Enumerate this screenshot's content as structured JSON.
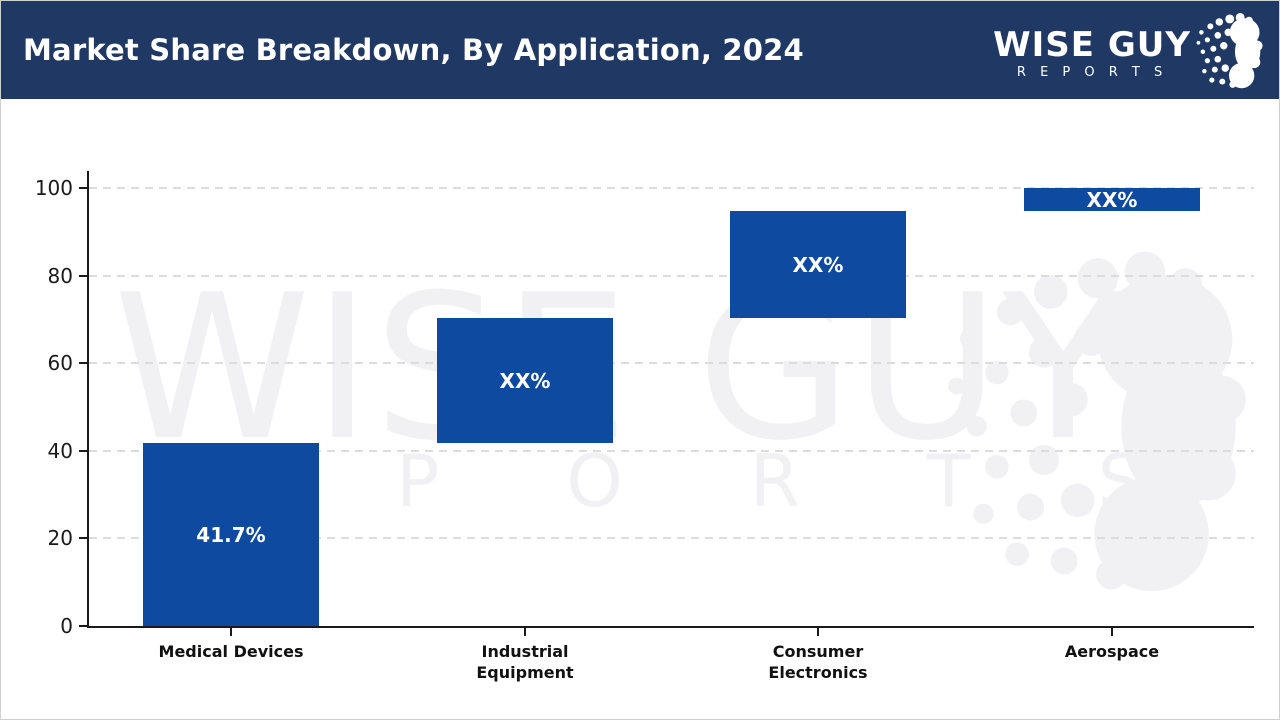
{
  "header": {
    "title": "Market Share Breakdown, By Application, 2024",
    "bg_color": "#1f3864",
    "logo": {
      "line1": "WISE GUY",
      "line2": "R E P O R T S"
    }
  },
  "watermark": {
    "line1": "WISE GUY",
    "line2": "P O R T S"
  },
  "chart_data": {
    "type": "bar",
    "subtype": "waterfall",
    "title": "Market Share Breakdown, By Application, 2024",
    "xlabel": "",
    "ylabel": "",
    "ylim": [
      0,
      100
    ],
    "yticks": [
      0,
      20,
      40,
      60,
      80,
      100
    ],
    "grid": "dashed-horizontal",
    "legend": "none",
    "bar_color": "#0d4aa0",
    "value_label_color": "#ffffff",
    "categories": [
      "Medical Devices",
      "Industrial Equipment",
      "Consumer Electronics",
      "Aerospace"
    ],
    "segments": [
      {
        "category": "Medical Devices",
        "label_lines": [
          "Medical Devices"
        ],
        "start": 0,
        "end": 41.7,
        "size": 41.7,
        "value_label": "41.7%"
      },
      {
        "category": "Industrial Equipment",
        "label_lines": [
          "Industrial",
          "Equipment"
        ],
        "start": 41.7,
        "end": 70.3,
        "size": 28.6,
        "value_label": "XX%"
      },
      {
        "category": "Consumer Electronics",
        "label_lines": [
          "Consumer",
          "Electronics"
        ],
        "start": 70.3,
        "end": 94.7,
        "size": 24.4,
        "value_label": "XX%"
      },
      {
        "category": "Aerospace",
        "label_lines": [
          "Aerospace"
        ],
        "start": 94.7,
        "end": 100,
        "size": 5.3,
        "value_label": "XX%"
      }
    ]
  }
}
